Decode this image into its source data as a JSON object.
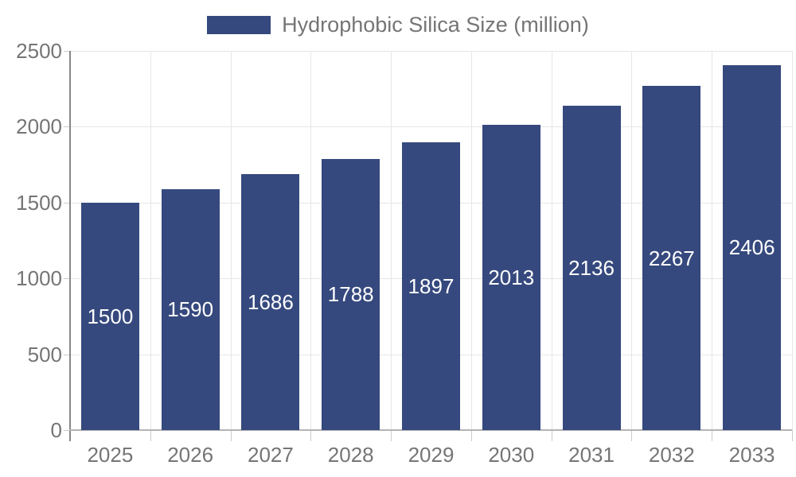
{
  "chart_data": {
    "type": "bar",
    "title": "",
    "legend_label": "Hydrophobic Silica Size (million)",
    "legend_position": "top-center",
    "categories": [
      "2025",
      "2026",
      "2027",
      "2028",
      "2029",
      "2030",
      "2031",
      "2032",
      "2033"
    ],
    "values": [
      1500,
      1590,
      1686,
      1788,
      1897,
      2013,
      2136,
      2267,
      2406
    ],
    "xlabel": "",
    "ylabel": "",
    "ylim": [
      0,
      2500
    ],
    "yticks": [
      0,
      500,
      1000,
      1500,
      2000,
      2500
    ],
    "grid": true,
    "value_labels_inside_bars": true,
    "colors": {
      "bar": "#36497e",
      "value_label": "#ffffff",
      "axis_text": "#757575",
      "grid_line": "#e6e6e6",
      "axis_line": "#888888",
      "baseline": "#b3b3b3",
      "tick": "#cccccc",
      "background": "#ffffff"
    }
  }
}
